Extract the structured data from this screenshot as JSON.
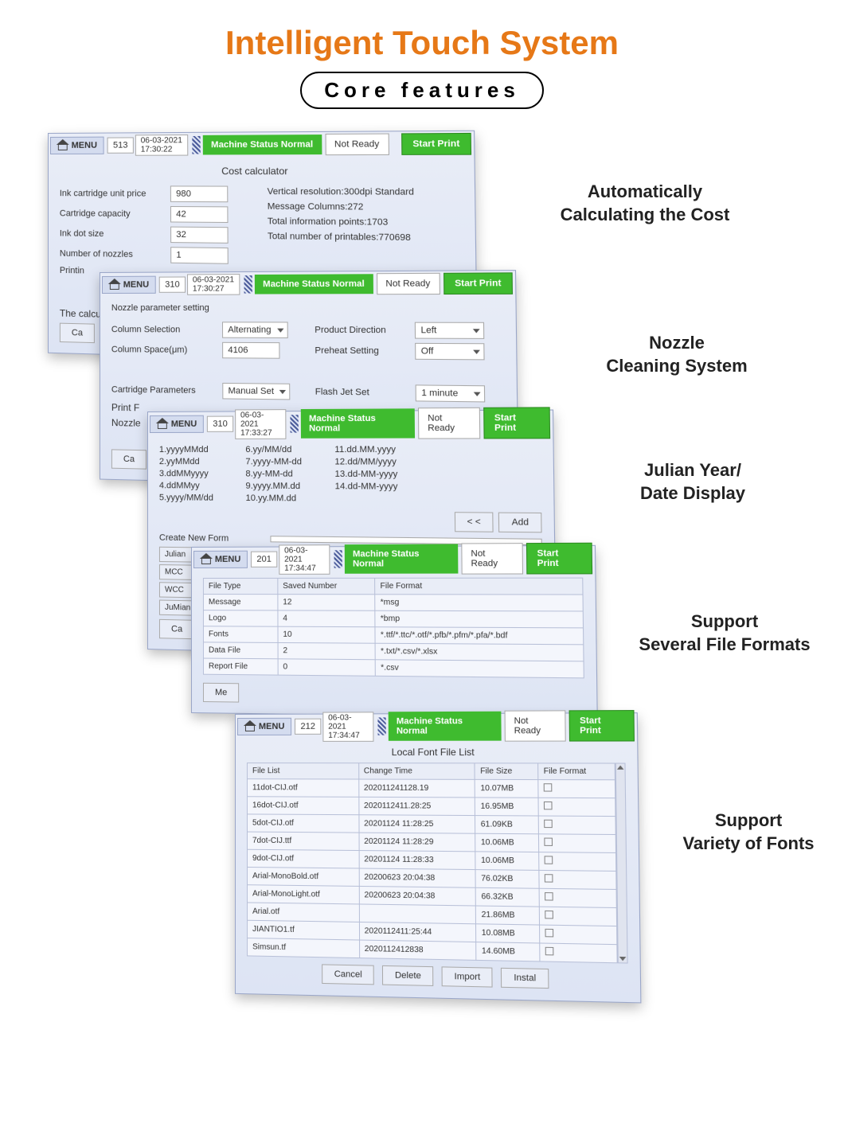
{
  "header": {
    "main_title": "Intelligent Touch System",
    "subtitle": "Core features"
  },
  "captions": {
    "c1": "Automatically\nCalculating the Cost",
    "c2": "Nozzle\nCleaning System",
    "c3": "Julian Year/\nDate Display",
    "c4": "Support\nSeveral File Formats",
    "c5": "Support\nVariety of Fonts"
  },
  "common": {
    "menu": "MENU",
    "status": "Machine Status Normal",
    "not_ready": "Not Ready",
    "start_print": "Start Print"
  },
  "panel1": {
    "count": "513",
    "date": "06-03-2021",
    "time": "17:30:22",
    "section": "Cost calculator",
    "labels": {
      "price": "Ink cartridge unit price",
      "capacity": "Cartridge capacity",
      "dot": "Ink dot size",
      "nozzles": "Number of nozzles",
      "printing": "Printin",
      "calc": "The calcul",
      "cancel": "Ca"
    },
    "values": {
      "price": "980",
      "capacity": "42",
      "dot": "32",
      "nozzles": "1"
    },
    "info": {
      "vres": "Vertical resolution:300dpi Standard",
      "cols": "Message Columns:272",
      "points": "Total information points:1703",
      "printables": "Total number of printables:770698"
    }
  },
  "panel2": {
    "count": "310",
    "date": "06-03-2021",
    "time": "17:30:27",
    "section": "Nozzle parameter setting",
    "labels": {
      "colsel": "Column Selection",
      "colspace": "Column Space(μm)",
      "cartparam": "Cartridge Parameters",
      "printf": "Print F",
      "nozzle": "Nozzle",
      "cancel": "Ca",
      "proddir": "Product Direction",
      "preheat": "Preheat Setting",
      "flash": "Flash Jet Set"
    },
    "values": {
      "colsel": "Alternating",
      "colspace": "4106",
      "cartparam": "Manual Set",
      "proddir": "Left",
      "preheat": "Off",
      "flash": "1 minute"
    }
  },
  "panel3": {
    "count": "310",
    "date": "06-03-2021",
    "time": "17:33:27",
    "col1": [
      "1.yyyyMMdd",
      "2.yyMMdd",
      "3.ddMMyyyy",
      "4.ddMMyy",
      "5.yyyy/MM/dd"
    ],
    "col2": [
      "6.yy/MM/dd",
      "7.yyyy-MM-dd",
      "8.yy-MM-dd",
      "9.yyyy.MM.dd",
      "10.yy.MM.dd"
    ],
    "col3": [
      "11.dd.MM.yyyy",
      "12.dd/MM/yyyy",
      "13.dd-MM-yyyy",
      "14.dd-MM-yyyy"
    ],
    "create_form": "Create New Form",
    "back": "< <",
    "add": "Add",
    "side": [
      "Julian",
      "MCC",
      "WCC",
      "JuMian"
    ],
    "cancel": "Ca"
  },
  "panel4": {
    "count": "201",
    "date": "06-03-2021",
    "time": "17:34:47",
    "headers": [
      "File Type",
      "Saved Number",
      "File Format"
    ],
    "rows": [
      [
        "Message",
        "12",
        "*msg"
      ],
      [
        "Logo",
        "4",
        "*bmp"
      ],
      [
        "Fonts",
        "10",
        "*.ttf/*.ttc/*.otf/*.pfb/*.pfm/*.pfa/*.bdf"
      ],
      [
        "Data File",
        "2",
        "*.txt/*.csv/*.xlsx"
      ],
      [
        "Report File",
        "0",
        "*.csv"
      ]
    ],
    "me": "Me"
  },
  "panel5": {
    "count": "212",
    "date": "06-03-2021",
    "time": "17:34:47",
    "title": "Local Font File List",
    "headers": [
      "File List",
      "Change Time",
      "File Size",
      "File Format"
    ],
    "rows": [
      [
        "11dot-CIJ.otf",
        "202011241128.19",
        "10.07MB"
      ],
      [
        "16dot-CIJ.otf",
        "2020112411.28:25",
        "16.95MB"
      ],
      [
        "5dot-CIJ.otf",
        "20201124 11:28:25",
        "61.09KB"
      ],
      [
        "7dot-CIJ.ttf",
        "20201124 11:28:29",
        "10.06MB"
      ],
      [
        "9dot-CIJ.otf",
        "20201124 11:28:33",
        "10.06MB"
      ],
      [
        "Arial-MonoBold.otf",
        "20200623 20:04:38",
        "76.02KB"
      ],
      [
        "Arial-MonoLight.otf",
        "20200623 20:04:38",
        "66.32KB"
      ],
      [
        "Arial.otf",
        "",
        "21.86MB"
      ],
      [
        "JIANTIO1.tf",
        "2020112411:25:44",
        "10.08MB"
      ],
      [
        "Simsun.tf",
        "2020112412838",
        "14.60MB"
      ]
    ],
    "buttons": {
      "cancel": "Cancel",
      "delete": "Delete",
      "import": "Import",
      "install": "Instal"
    }
  },
  "colors": {
    "accent_orange": "#e67817",
    "green": "#3fbb2f",
    "panel_bg": "#e9edf7"
  }
}
